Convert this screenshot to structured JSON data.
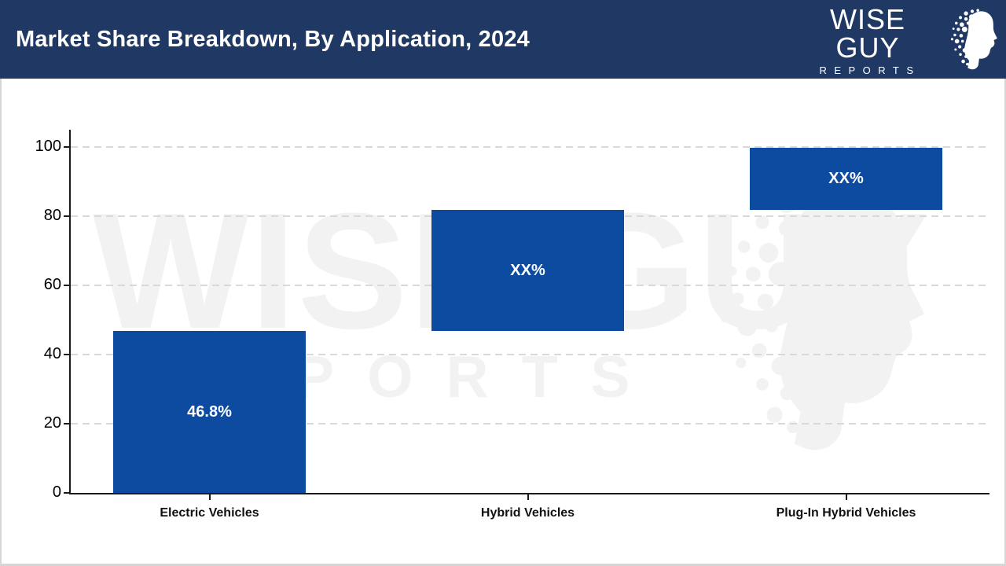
{
  "header": {
    "title": "Market Share Breakdown, By Application, 2024",
    "logo": {
      "brand_line1": "WISE GUY",
      "brand_line2": "REPORTS"
    }
  },
  "watermark": {
    "line1": "WISE GUY",
    "line2": "REPORTS"
  },
  "chart_data": {
    "type": "bar",
    "subtype": "floating-waterfall",
    "title": "Market Share Breakdown, By Application, 2024",
    "categories": [
      "Electric Vehicles",
      "Hybrid Vehicles",
      "Plug-In Hybrid Vehicles"
    ],
    "series": [
      {
        "name": "Market share (%)",
        "segments": [
          {
            "category": "Electric Vehicles",
            "start": 0,
            "end": 46.8,
            "label": "46.8%"
          },
          {
            "category": "Hybrid Vehicles",
            "start": 46.8,
            "end": 81.8,
            "label": "XX%"
          },
          {
            "category": "Plug-In Hybrid Vehicles",
            "start": 81.8,
            "end": 99.8,
            "label": "XX%"
          }
        ]
      }
    ],
    "xlabel": "",
    "ylabel": "",
    "y_ticks": [
      0,
      20,
      40,
      60,
      80,
      100
    ],
    "ylim": [
      0,
      105
    ],
    "grid": "horizontal-dashed",
    "legend_position": "none",
    "colors": {
      "bar": "#0d4ba1",
      "bar_label": "#ffffff",
      "grid": "#d9d9d9",
      "axis": "#1a1a1a",
      "tick_label": "#000000"
    }
  },
  "colors": {
    "header_bg": "#203864",
    "page_bg": "#ffffff",
    "watermark": "#f2f2f2",
    "frame_border": "#d6d6d6"
  }
}
